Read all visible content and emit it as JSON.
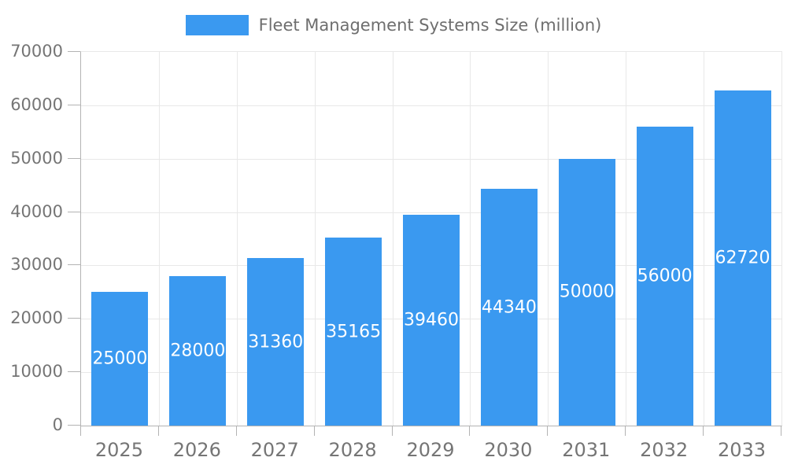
{
  "chart_data": {
    "type": "bar",
    "title": "",
    "legend": {
      "label": "Fleet Management Systems Size (million)",
      "position": "top"
    },
    "categories": [
      "2025",
      "2026",
      "2027",
      "2028",
      "2029",
      "2030",
      "2031",
      "2032",
      "2033"
    ],
    "series": [
      {
        "name": "Fleet Management Systems Size (million)",
        "values": [
          25000,
          28000,
          31360,
          35165,
          39460,
          44340,
          50000,
          56000,
          62720
        ]
      }
    ],
    "xlabel": "",
    "ylabel": "",
    "ylim": [
      0,
      70000
    ],
    "ytick_interval": 10000,
    "yticks": [
      0,
      10000,
      20000,
      30000,
      40000,
      50000,
      60000,
      70000
    ],
    "grid": true,
    "bar_labels_visible": true,
    "colors": {
      "bar": "#3a99f0",
      "bar_label": "#ffffff",
      "axis": "#b3b3b3",
      "grid": "#e8e8e8",
      "axis_label": "#757575",
      "legend_text": "#6e6e6e",
      "background": "#ffffff"
    }
  }
}
